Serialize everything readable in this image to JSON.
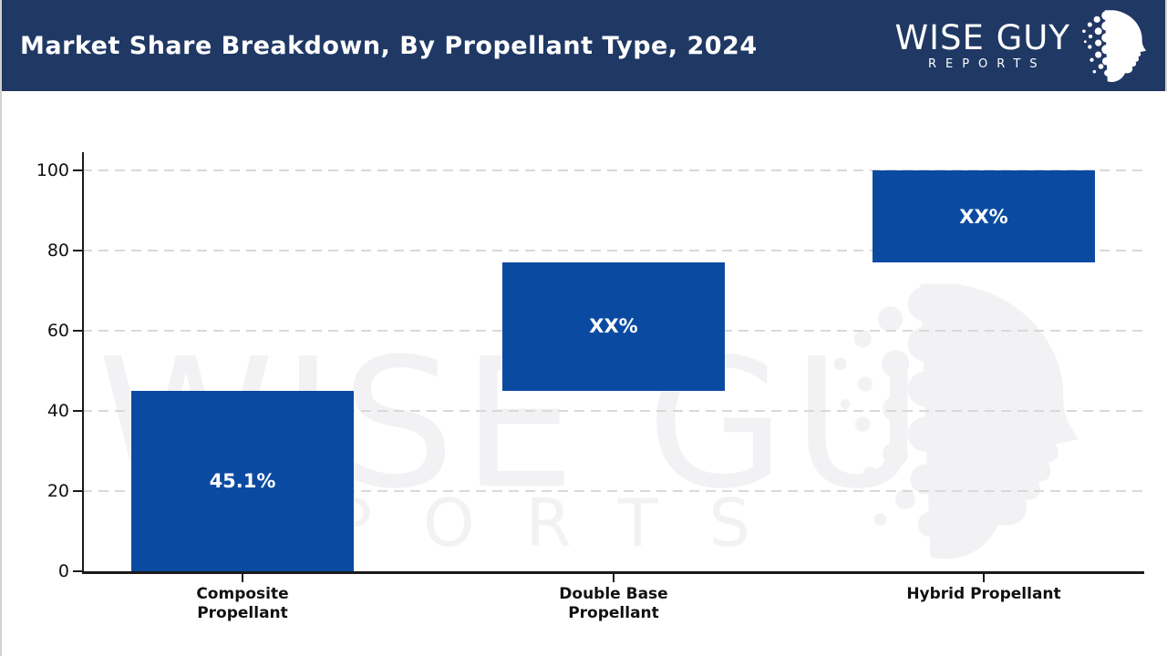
{
  "header": {
    "title": "Market Share Breakdown, By Propellant Type, 2024",
    "logo": {
      "line1": "WISE GUY",
      "line2": "REPORTS"
    }
  },
  "watermark": {
    "line1": "WISE GUY",
    "line2": "REPORTS"
  },
  "colors": {
    "header_bg": "#1f3864",
    "bar": "#0b4aa1",
    "bar_label": "#ffffff",
    "gridline": "#d9d9d9",
    "axis": "#1a1a1a",
    "watermark": "#f2f2f4",
    "page_border": "#d2d2d2"
  },
  "chart_data": {
    "type": "bar",
    "subtype": "waterfall-stacked-percentage",
    "title": "Market Share Breakdown, By Propellant Type, 2024",
    "categories": [
      "Composite\nPropellant",
      "Double Base\nPropellant",
      "Hybrid Propellant"
    ],
    "bars": [
      {
        "category": "Composite Propellant",
        "start": 0,
        "end": 45.1,
        "label": "45.1%"
      },
      {
        "category": "Double Base Propellant",
        "start": 45.1,
        "end": 77,
        "label": "XX%"
      },
      {
        "category": "Hybrid Propellant",
        "start": 77,
        "end": 100,
        "label": "XX%"
      }
    ],
    "xlabel": "",
    "ylabel": "",
    "ylim": [
      0,
      100
    ],
    "yticks": [
      0,
      20,
      40,
      60,
      80,
      100
    ],
    "grid": "horizontal-dashed",
    "legend": "none",
    "bar_color": "#0b4aa1"
  }
}
